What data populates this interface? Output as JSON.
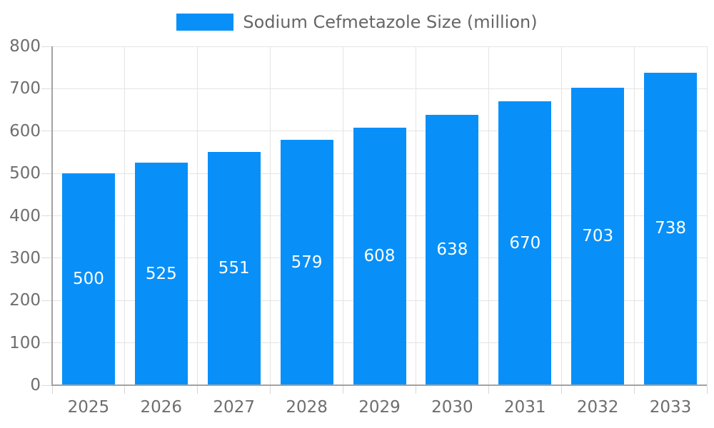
{
  "chart_data": {
    "type": "bar",
    "series_name": "Sodium Cefmetazole Size (million)",
    "categories": [
      "2025",
      "2026",
      "2027",
      "2028",
      "2029",
      "2030",
      "2031",
      "2032",
      "2033"
    ],
    "values": [
      500,
      525,
      551,
      579,
      608,
      638,
      670,
      703,
      738
    ],
    "yticks": [
      0,
      100,
      200,
      300,
      400,
      500,
      600,
      700,
      800
    ],
    "ylim": [
      0,
      800
    ],
    "xlabel": "",
    "ylabel": "",
    "grid": true,
    "legend_position": "top-center",
    "value_labels": "inside-center-white",
    "bar_color": "#0890f8",
    "value_label_color": "#ffffff",
    "axis_text_color": "#6e6e6e",
    "grid_color": "#e4e4e4",
    "axis_line_color": "#a2a2a2"
  }
}
